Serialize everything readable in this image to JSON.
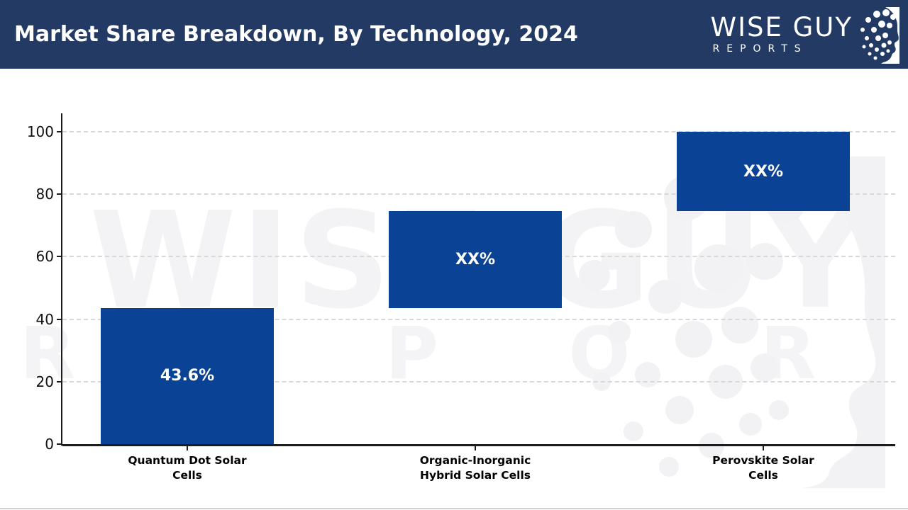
{
  "header": {
    "title": "Market Share Breakdown, By Technology, 2024",
    "logo": {
      "brand_line1": "WISE GUY",
      "brand_line2": "REPORTS"
    }
  },
  "watermark": {
    "line1": "WISE GUY",
    "line2": "R E P O R T S"
  },
  "colors": {
    "header_bg": "#233a64",
    "header_text": "#ffffff",
    "bar_fill": "#0a4396",
    "bar_label": "#ffffff",
    "grid_line": "#d8d8d8",
    "axis_line": "#1c1c1c",
    "tick_label": "#111111",
    "category_label": "#000000",
    "watermark_gray": "#f3f3f5"
  },
  "chart_data": {
    "type": "bar",
    "subtype": "waterfall",
    "title": "Market Share Breakdown, By Technology, 2024",
    "categories": [
      "Quantum Dot Solar Cells",
      "Organic-Inorganic Hybrid Solar Cells",
      "Perovskite Solar Cells"
    ],
    "category_lines": [
      [
        "Quantum Dot Solar",
        "Cells"
      ],
      [
        "Organic-Inorganic",
        "Hybrid Solar Cells"
      ],
      [
        "Perovskite Solar",
        "Cells"
      ]
    ],
    "segments": [
      {
        "category": "Quantum Dot Solar Cells",
        "start": 0,
        "end": 43.6,
        "label": "43.6%"
      },
      {
        "category": "Organic-Inorganic Hybrid Solar Cells",
        "start": 43.6,
        "end": 74.6,
        "label": "XX%"
      },
      {
        "category": "Perovskite Solar Cells",
        "start": 74.6,
        "end": 100,
        "label": "XX%"
      }
    ],
    "ylim": [
      0,
      100
    ],
    "yticks": [
      0,
      20,
      40,
      60,
      80,
      100
    ],
    "xlabel": "",
    "ylabel": "",
    "grid": "horizontal-dashed",
    "legend": "none"
  }
}
